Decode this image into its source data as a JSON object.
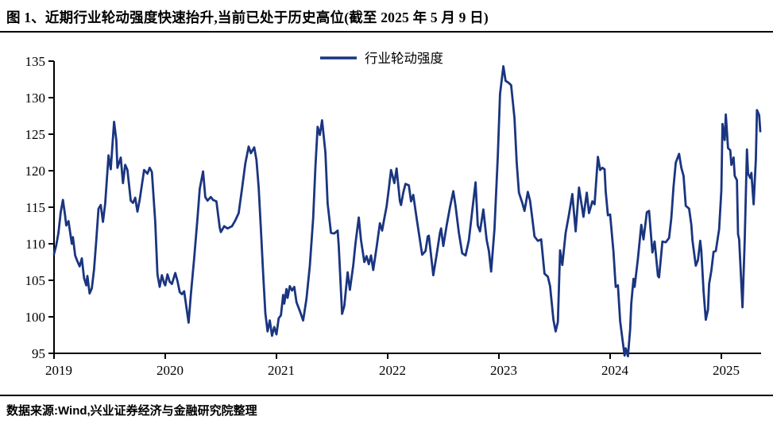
{
  "header": {
    "title": "图 1、近期行业轮动强度快速抬升,当前已处于历史高位(截至 2025 年 5 月 9 日)"
  },
  "footer": {
    "source": "数据来源:Wind,兴业证券经济与金融研究院整理"
  },
  "chart_data": {
    "type": "line",
    "title": "",
    "xlabel": "",
    "ylabel": "",
    "legend": [
      "行业轮动强度"
    ],
    "legend_position": "top-center",
    "grid": false,
    "ylim": [
      95,
      135
    ],
    "y_ticks": [
      95,
      100,
      105,
      110,
      115,
      120,
      125,
      130,
      135
    ],
    "x_ticks": [
      2019,
      2020,
      2021,
      2022,
      2023,
      2024,
      2025
    ],
    "x_range": [
      2019,
      2025.36
    ],
    "axis_color": "#000000",
    "line_color": "#1a3580",
    "series": [
      {
        "name": "行业轮动强度",
        "color": "#1a3580",
        "points": [
          [
            2019.0,
            108.6
          ],
          [
            2019.02,
            109.8
          ],
          [
            2019.04,
            111.5
          ],
          [
            2019.06,
            114.3
          ],
          [
            2019.08,
            116.0
          ],
          [
            2019.1,
            113.8
          ],
          [
            2019.11,
            112.5
          ],
          [
            2019.13,
            113.1
          ],
          [
            2019.16,
            110.0
          ],
          [
            2019.17,
            110.9
          ],
          [
            2019.19,
            108.4
          ],
          [
            2019.21,
            107.6
          ],
          [
            2019.23,
            106.9
          ],
          [
            2019.25,
            108.0
          ],
          [
            2019.27,
            105.3
          ],
          [
            2019.29,
            104.3
          ],
          [
            2019.3,
            105.6
          ],
          [
            2019.32,
            103.2
          ],
          [
            2019.34,
            103.9
          ],
          [
            2019.36,
            106.5
          ],
          [
            2019.38,
            110.5
          ],
          [
            2019.4,
            114.8
          ],
          [
            2019.42,
            115.3
          ],
          [
            2019.44,
            113.0
          ],
          [
            2019.46,
            115.5
          ],
          [
            2019.49,
            122.1
          ],
          [
            2019.51,
            120.2
          ],
          [
            2019.54,
            126.7
          ],
          [
            2019.56,
            124.2
          ],
          [
            2019.57,
            120.4
          ],
          [
            2019.6,
            121.8
          ],
          [
            2019.62,
            118.3
          ],
          [
            2019.64,
            120.8
          ],
          [
            2019.66,
            120.1
          ],
          [
            2019.69,
            115.9
          ],
          [
            2019.71,
            115.6
          ],
          [
            2019.73,
            116.3
          ],
          [
            2019.75,
            114.4
          ],
          [
            2019.77,
            116.0
          ],
          [
            2019.81,
            120.1
          ],
          [
            2019.84,
            119.6
          ],
          [
            2019.86,
            120.4
          ],
          [
            2019.88,
            119.8
          ],
          [
            2019.91,
            113.0
          ],
          [
            2019.93,
            105.8
          ],
          [
            2019.95,
            104.1
          ],
          [
            2019.97,
            105.7
          ],
          [
            2019.99,
            104.6
          ],
          [
            2020.0,
            104.3
          ],
          [
            2020.02,
            105.8
          ],
          [
            2020.04,
            104.8
          ],
          [
            2020.06,
            104.5
          ],
          [
            2020.09,
            106.0
          ],
          [
            2020.11,
            104.9
          ],
          [
            2020.13,
            103.4
          ],
          [
            2020.15,
            103.1
          ],
          [
            2020.17,
            103.5
          ],
          [
            2020.21,
            99.2
          ],
          [
            2020.23,
            103.0
          ],
          [
            2020.26,
            108.0
          ],
          [
            2020.29,
            113.5
          ],
          [
            2020.31,
            117.5
          ],
          [
            2020.34,
            119.9
          ],
          [
            2020.36,
            116.4
          ],
          [
            2020.38,
            115.9
          ],
          [
            2020.41,
            116.4
          ],
          [
            2020.43,
            116.0
          ],
          [
            2020.46,
            115.8
          ],
          [
            2020.49,
            112.2
          ],
          [
            2020.5,
            111.6
          ],
          [
            2020.53,
            112.4
          ],
          [
            2020.56,
            112.1
          ],
          [
            2020.6,
            112.4
          ],
          [
            2020.63,
            113.2
          ],
          [
            2020.66,
            114.2
          ],
          [
            2020.69,
            117.5
          ],
          [
            2020.72,
            121.0
          ],
          [
            2020.75,
            123.3
          ],
          [
            2020.77,
            122.4
          ],
          [
            2020.8,
            123.2
          ],
          [
            2020.82,
            121.5
          ],
          [
            2020.84,
            117.7
          ],
          [
            2020.86,
            112.0
          ],
          [
            2020.88,
            106.0
          ],
          [
            2020.9,
            100.5
          ],
          [
            2020.92,
            98.0
          ],
          [
            2020.94,
            99.5
          ],
          [
            2020.96,
            97.4
          ],
          [
            2020.98,
            98.6
          ],
          [
            2021.0,
            97.6
          ],
          [
            2021.02,
            99.8
          ],
          [
            2021.04,
            100.2
          ],
          [
            2021.06,
            103.0
          ],
          [
            2021.07,
            101.8
          ],
          [
            2021.09,
            103.8
          ],
          [
            2021.1,
            102.6
          ],
          [
            2021.12,
            104.2
          ],
          [
            2021.14,
            103.6
          ],
          [
            2021.16,
            104.1
          ],
          [
            2021.18,
            102.0
          ],
          [
            2021.21,
            100.8
          ],
          [
            2021.24,
            99.5
          ],
          [
            2021.27,
            102.5
          ],
          [
            2021.3,
            107.0
          ],
          [
            2021.33,
            113.5
          ],
          [
            2021.35,
            120.5
          ],
          [
            2021.37,
            126.0
          ],
          [
            2021.39,
            124.9
          ],
          [
            2021.41,
            126.9
          ],
          [
            2021.44,
            122.5
          ],
          [
            2021.46,
            115.5
          ],
          [
            2021.49,
            111.5
          ],
          [
            2021.52,
            111.4
          ],
          [
            2021.55,
            111.8
          ],
          [
            2021.56,
            109.7
          ],
          [
            2021.59,
            100.4
          ],
          [
            2021.61,
            101.5
          ],
          [
            2021.64,
            106.1
          ],
          [
            2021.66,
            103.7
          ],
          [
            2021.69,
            107.0
          ],
          [
            2021.71,
            110.0
          ],
          [
            2021.74,
            113.6
          ],
          [
            2021.76,
            110.5
          ],
          [
            2021.79,
            107.5
          ],
          [
            2021.81,
            108.3
          ],
          [
            2021.83,
            107.2
          ],
          [
            2021.85,
            108.4
          ],
          [
            2021.87,
            106.4
          ],
          [
            2021.9,
            109.5
          ],
          [
            2021.93,
            112.8
          ],
          [
            2021.95,
            111.8
          ],
          [
            2021.97,
            113.5
          ],
          [
            2021.99,
            115.1
          ],
          [
            2022.01,
            117.5
          ],
          [
            2022.03,
            120.1
          ],
          [
            2022.06,
            118.3
          ],
          [
            2022.08,
            120.3
          ],
          [
            2022.11,
            115.8
          ],
          [
            2022.12,
            115.3
          ],
          [
            2022.14,
            117.0
          ],
          [
            2022.16,
            118.2
          ],
          [
            2022.19,
            118.0
          ],
          [
            2022.21,
            115.8
          ],
          [
            2022.23,
            116.7
          ],
          [
            2022.26,
            113.5
          ],
          [
            2022.29,
            110.5
          ],
          [
            2022.31,
            108.5
          ],
          [
            2022.34,
            109.0
          ],
          [
            2022.36,
            111.0
          ],
          [
            2022.37,
            111.1
          ],
          [
            2022.41,
            105.7
          ],
          [
            2022.44,
            108.5
          ],
          [
            2022.47,
            111.5
          ],
          [
            2022.48,
            112.1
          ],
          [
            2022.5,
            109.7
          ],
          [
            2022.53,
            112.5
          ],
          [
            2022.56,
            115.0
          ],
          [
            2022.59,
            117.2
          ],
          [
            2022.61,
            115.2
          ],
          [
            2022.64,
            111.5
          ],
          [
            2022.67,
            108.7
          ],
          [
            2022.7,
            108.4
          ],
          [
            2022.73,
            110.5
          ],
          [
            2022.76,
            114.5
          ],
          [
            2022.79,
            118.4
          ],
          [
            2022.81,
            112.5
          ],
          [
            2022.83,
            111.7
          ],
          [
            2022.86,
            114.7
          ],
          [
            2022.89,
            110.5
          ],
          [
            2022.91,
            109.0
          ],
          [
            2022.93,
            106.2
          ],
          [
            2022.96,
            112.0
          ],
          [
            2022.99,
            122.0
          ],
          [
            2023.01,
            130.5
          ],
          [
            2023.04,
            134.3
          ],
          [
            2023.06,
            132.3
          ],
          [
            2023.09,
            132.0
          ],
          [
            2023.11,
            131.7
          ],
          [
            2023.14,
            127.2
          ],
          [
            2023.16,
            121.1
          ],
          [
            2023.18,
            117.0
          ],
          [
            2023.21,
            115.6
          ],
          [
            2023.23,
            114.5
          ],
          [
            2023.26,
            117.1
          ],
          [
            2023.28,
            115.9
          ],
          [
            2023.3,
            113.5
          ],
          [
            2023.32,
            111.0
          ],
          [
            2023.35,
            110.4
          ],
          [
            2023.38,
            110.6
          ],
          [
            2023.41,
            105.9
          ],
          [
            2023.44,
            105.5
          ],
          [
            2023.46,
            104.2
          ],
          [
            2023.49,
            99.6
          ],
          [
            2023.51,
            98.0
          ],
          [
            2023.53,
            99.3
          ],
          [
            2023.55,
            109.1
          ],
          [
            2023.57,
            107.1
          ],
          [
            2023.6,
            111.5
          ],
          [
            2023.63,
            114.0
          ],
          [
            2023.66,
            116.8
          ],
          [
            2023.69,
            111.7
          ],
          [
            2023.72,
            117.7
          ],
          [
            2023.76,
            113.7
          ],
          [
            2023.79,
            117.0
          ],
          [
            2023.81,
            114.2
          ],
          [
            2023.84,
            115.8
          ],
          [
            2023.86,
            115.4
          ],
          [
            2023.89,
            121.9
          ],
          [
            2023.91,
            120.1
          ],
          [
            2023.93,
            120.4
          ],
          [
            2023.95,
            120.2
          ],
          [
            2023.96,
            117.2
          ],
          [
            2023.98,
            113.9
          ],
          [
            2024.0,
            114.0
          ],
          [
            2024.03,
            108.9
          ],
          [
            2024.05,
            104.1
          ],
          [
            2024.07,
            104.3
          ],
          [
            2024.09,
            99.4
          ],
          [
            2024.11,
            97.0
          ],
          [
            2024.13,
            94.7
          ],
          [
            2024.14,
            95.7
          ],
          [
            2024.16,
            94.6
          ],
          [
            2024.18,
            98.3
          ],
          [
            2024.19,
            101.8
          ],
          [
            2024.21,
            105.2
          ],
          [
            2024.22,
            104.1
          ],
          [
            2024.25,
            108.0
          ],
          [
            2024.28,
            112.6
          ],
          [
            2024.3,
            110.6
          ],
          [
            2024.33,
            114.3
          ],
          [
            2024.35,
            114.5
          ],
          [
            2024.38,
            108.8
          ],
          [
            2024.4,
            110.3
          ],
          [
            2024.43,
            105.6
          ],
          [
            2024.44,
            105.4
          ],
          [
            2024.47,
            110.3
          ],
          [
            2024.5,
            110.2
          ],
          [
            2024.53,
            110.8
          ],
          [
            2024.55,
            113.5
          ],
          [
            2024.57,
            117.8
          ],
          [
            2024.59,
            121.1
          ],
          [
            2024.62,
            122.3
          ],
          [
            2024.64,
            120.4
          ],
          [
            2024.66,
            119.3
          ],
          [
            2024.68,
            115.2
          ],
          [
            2024.71,
            114.8
          ],
          [
            2024.73,
            112.6
          ],
          [
            2024.74,
            110.5
          ],
          [
            2024.77,
            107.0
          ],
          [
            2024.79,
            107.8
          ],
          [
            2024.81,
            110.4
          ],
          [
            2024.82,
            109.0
          ],
          [
            2024.84,
            103.5
          ],
          [
            2024.86,
            99.6
          ],
          [
            2024.88,
            101.0
          ],
          [
            2024.89,
            104.5
          ],
          [
            2024.91,
            106.3
          ],
          [
            2024.93,
            108.9
          ],
          [
            2024.95,
            109.0
          ],
          [
            2024.98,
            112.0
          ],
          [
            2025.0,
            117.3
          ],
          [
            2025.01,
            126.4
          ],
          [
            2025.03,
            124.2
          ],
          [
            2025.04,
            127.7
          ],
          [
            2025.06,
            123.1
          ],
          [
            2025.08,
            122.8
          ],
          [
            2025.09,
            120.8
          ],
          [
            2025.11,
            121.8
          ],
          [
            2025.12,
            119.3
          ],
          [
            2025.14,
            118.7
          ],
          [
            2025.15,
            111.3
          ],
          [
            2025.16,
            110.6
          ],
          [
            2025.19,
            101.3
          ],
          [
            2025.21,
            110.5
          ],
          [
            2025.23,
            122.9
          ],
          [
            2025.24,
            119.6
          ],
          [
            2025.26,
            119.0
          ],
          [
            2025.27,
            119.7
          ],
          [
            2025.29,
            115.4
          ],
          [
            2025.31,
            121.5
          ],
          [
            2025.32,
            128.3
          ],
          [
            2025.34,
            127.6
          ],
          [
            2025.35,
            125.4
          ]
        ]
      }
    ]
  }
}
